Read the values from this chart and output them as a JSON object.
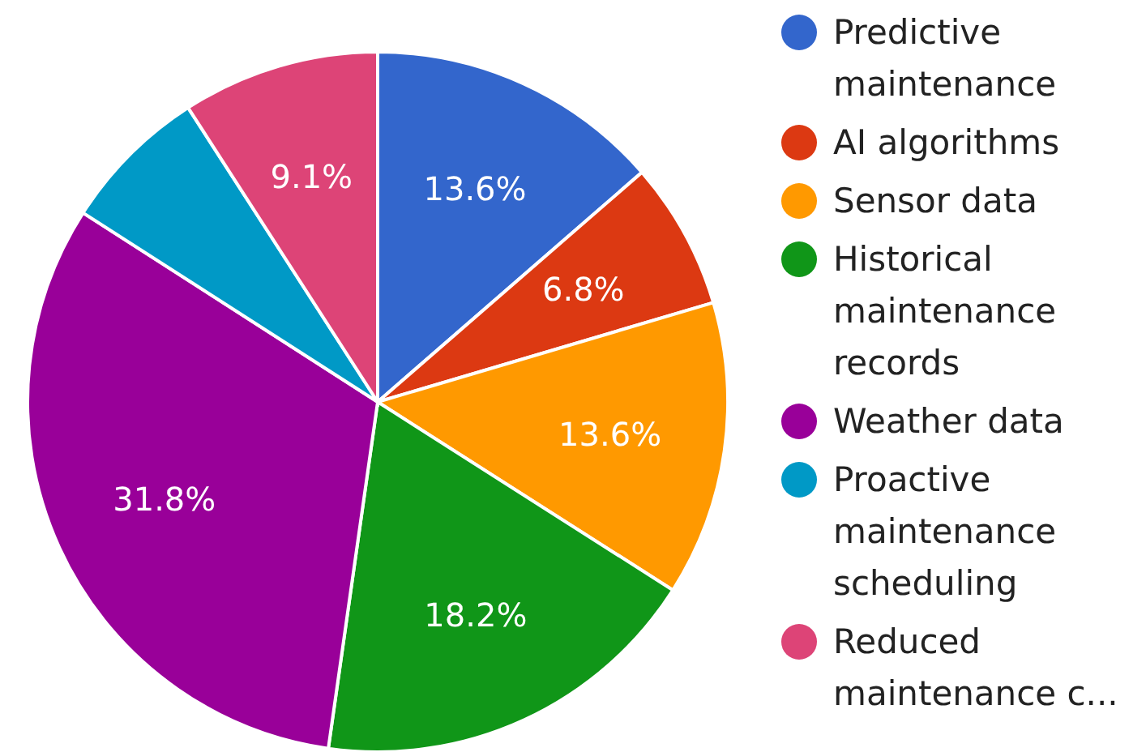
{
  "chart_data": {
    "type": "pie",
    "categories": [
      "Predictive maintenance",
      "AI algorithms",
      "Sensor data",
      "Historical maintenance records",
      "Weather data",
      "Proactive maintenance scheduling",
      "Reduced maintenance c..."
    ],
    "values": [
      13.6,
      6.8,
      13.6,
      18.2,
      31.8,
      6.8,
      9.1
    ],
    "value_labels": [
      "13.6%",
      "6.8%",
      "13.6%",
      "18.2%",
      "31.8%",
      null,
      "9.1%"
    ],
    "colors": [
      "#3366cc",
      "#dc3912",
      "#ff9900",
      "#109618",
      "#990099",
      "#0099c6",
      "#dd4477"
    ],
    "legend": "right"
  }
}
